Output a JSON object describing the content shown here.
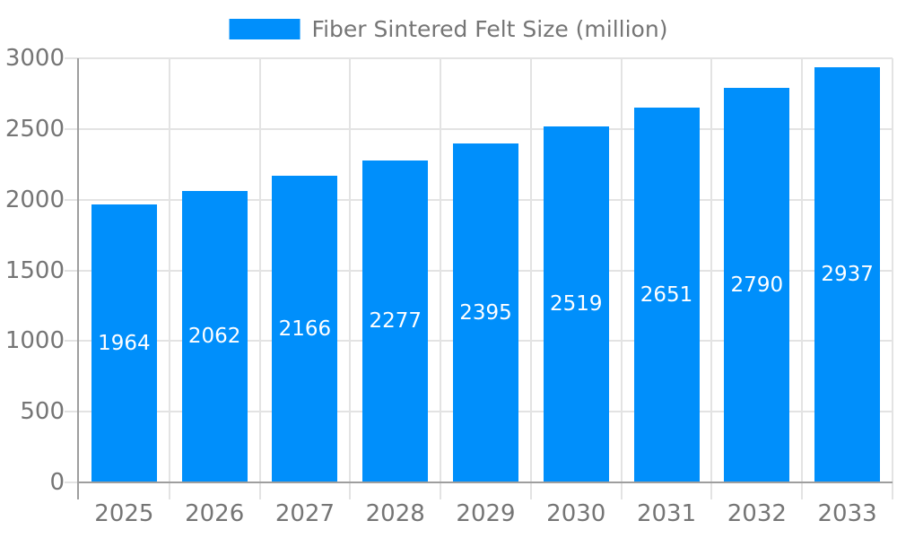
{
  "legend": {
    "label": "Fiber Sintered Felt Size (million)"
  },
  "chart_data": {
    "type": "bar",
    "title": "",
    "xlabel": "",
    "ylabel": "",
    "categories": [
      "2025",
      "2026",
      "2027",
      "2028",
      "2029",
      "2030",
      "2031",
      "2032",
      "2033"
    ],
    "series": [
      {
        "name": "Fiber Sintered Felt Size (million)",
        "values": [
          1964,
          2062,
          2166,
          2277,
          2395,
          2519,
          2651,
          2790,
          2937
        ]
      }
    ],
    "value_labels_shown": true,
    "ylim": [
      0,
      3000
    ],
    "yticks": [
      0,
      500,
      1000,
      1500,
      2000,
      2500,
      3000
    ],
    "grid": true,
    "legend_position": "top-center",
    "colors": {
      "bar": "#008FFB",
      "value_label": "#ffffff",
      "axis_text": "#757575",
      "grid_line": "#e3e3e3",
      "axis_line": "#9e9e9e",
      "background": "#ffffff"
    }
  }
}
